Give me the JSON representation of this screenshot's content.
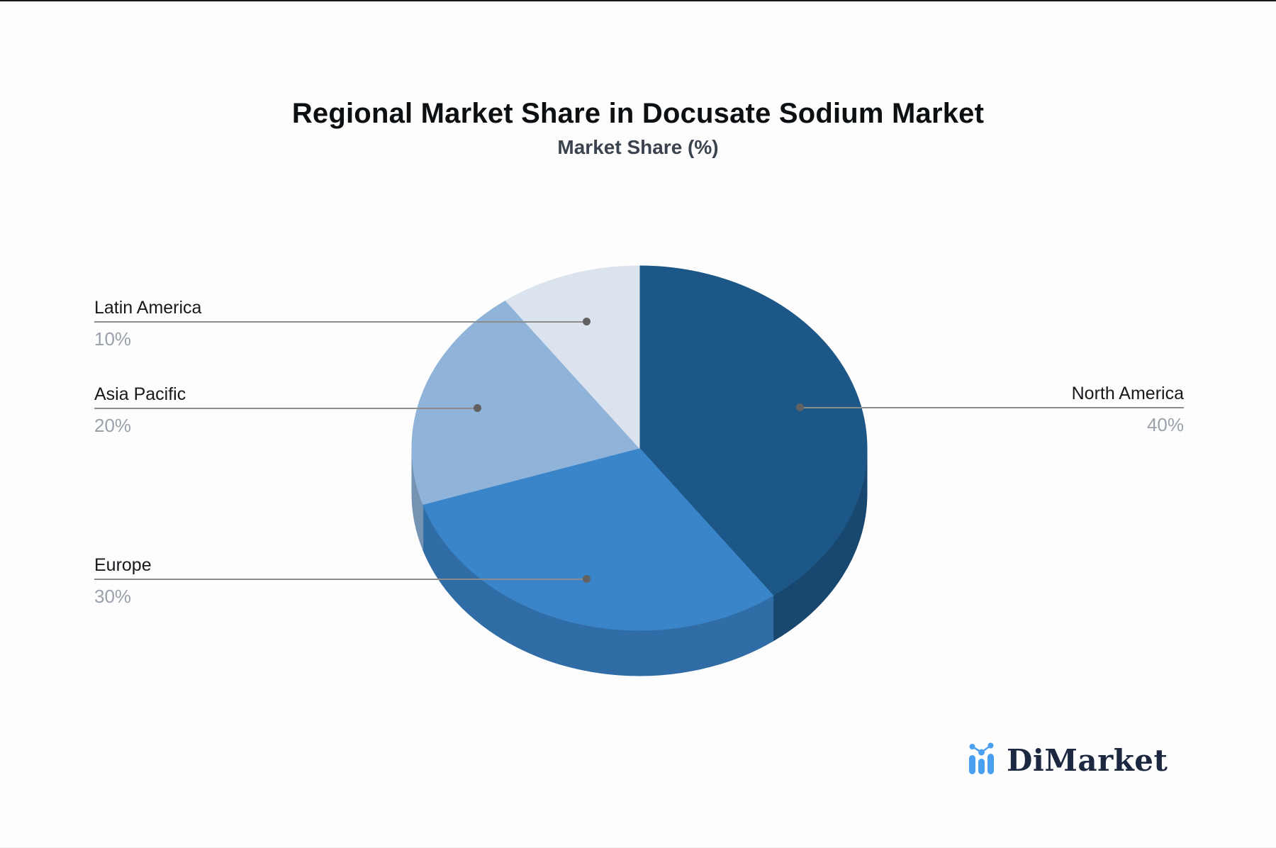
{
  "header": {
    "title": "Regional Market Share in Docusate Sodium Market",
    "subtitle": "Market Share (%)"
  },
  "chart_data": {
    "type": "pie",
    "style": "3d",
    "title": "Regional Market Share in Docusate Sodium Market",
    "subtitle": "Market Share (%)",
    "unit": "%",
    "categories": [
      "North America",
      "Europe",
      "Asia Pacific",
      "Latin America"
    ],
    "values": [
      40,
      30,
      20,
      10
    ],
    "labels": [
      "40%",
      "30%",
      "20%",
      "10%"
    ],
    "colors": [
      "#1d5787",
      "#3a84c9",
      "#8fb3d9",
      "#dbe3ee"
    ],
    "start_angle_deg": 90,
    "direction": "clockwise",
    "legend": "callout-lines"
  },
  "branding": {
    "logo_text": "DiMarket",
    "logo_icon": "bar-line-chart-icon",
    "icon_color": "#4aa0f0",
    "text_color": "#1b2840"
  },
  "colors": {
    "connector": "#8c8c8c",
    "label_text": "#17191d",
    "pct_text": "#9aa1ab",
    "title_text": "#0d1013",
    "subtitle_text": "#3b434f",
    "page_background": "#fdfdfd"
  }
}
